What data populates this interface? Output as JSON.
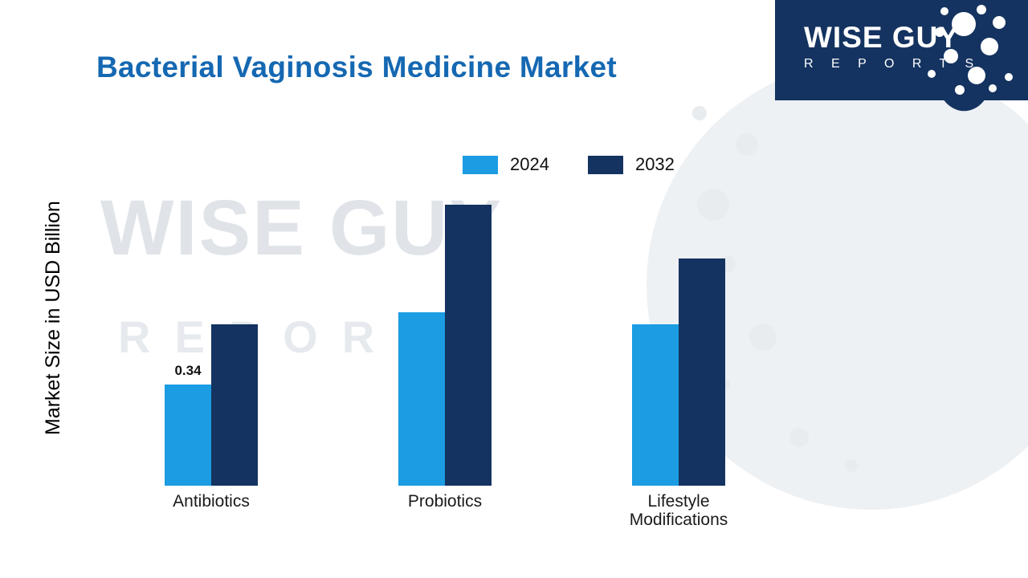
{
  "header": {
    "title": "Bacterial Vaginosis Medicine Market"
  },
  "logo": {
    "name": "WISE GUY",
    "sub": "R E P O R T S"
  },
  "watermark": {
    "name": "WISE GUY",
    "sub": "REPORTS"
  },
  "chart_data": {
    "type": "bar",
    "title": "Bacterial Vaginosis Medicine Market",
    "xlabel": "",
    "ylabel": "Market Size in USD Billion",
    "categories": [
      "Antibiotics",
      "Probiotics",
      "Lifestyle Modifications"
    ],
    "series": [
      {
        "name": "2024",
        "color": "#1b9ce3",
        "values": [
          0.34,
          0.58,
          0.54
        ]
      },
      {
        "name": "2032",
        "color": "#143360",
        "values": [
          0.54,
          0.94,
          0.76
        ]
      }
    ],
    "annotations": [
      {
        "series_index": 0,
        "category_index": 0,
        "text": "0.34"
      }
    ],
    "ylim": [
      0,
      1.0
    ],
    "grid": false,
    "legend_position": "top-center"
  },
  "colors": {
    "title": "#1568b2",
    "series_2024": "#1b9ce3",
    "series_2032": "#143360",
    "logo_background": "#143360",
    "watermark_text": "#e0e4e9",
    "watermark_circle": "#eef1f4",
    "background": "#ffffff"
  }
}
